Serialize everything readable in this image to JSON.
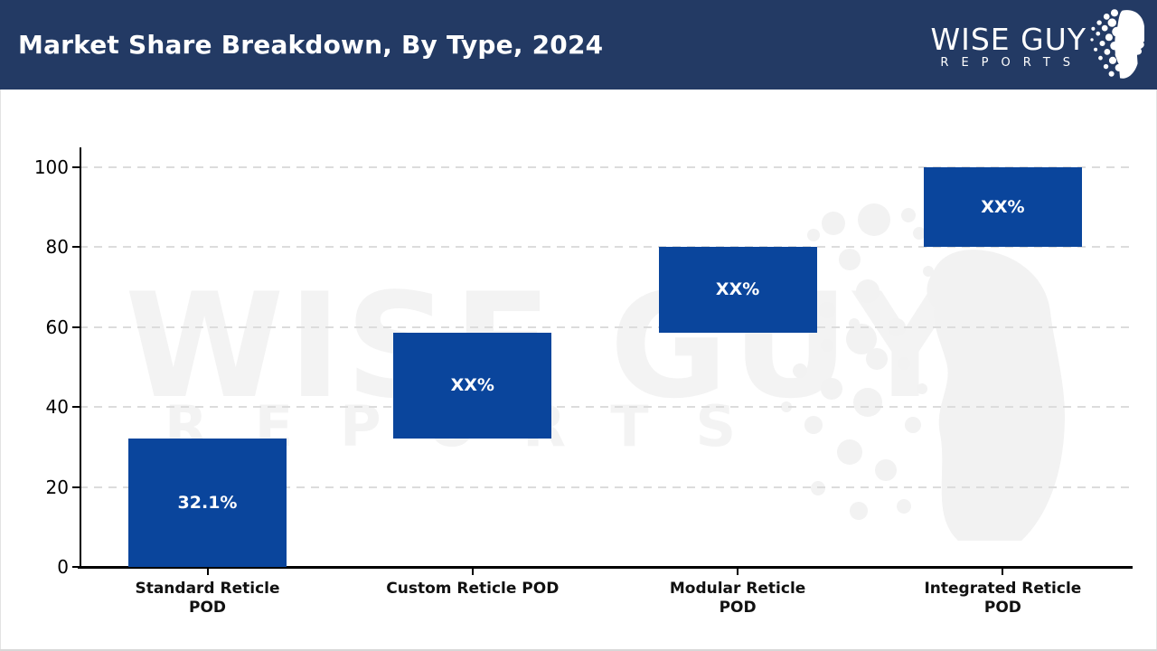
{
  "page": {
    "background": "#ffffff"
  },
  "header": {
    "bg_color": "#233a64",
    "title": "Market Share Breakdown, By Type, 2024",
    "logo": {
      "wordmark": "WISE GUY",
      "subtitle": "REPORTS"
    }
  },
  "watermark": {
    "wordmark": "WISE GUY",
    "subtitle": "REPORTS"
  },
  "chart_data": {
    "type": "bar",
    "subtype": "waterfall",
    "title": "Market Share Breakdown, By Type, 2024",
    "categories": [
      "Standard Reticle POD",
      "Custom Reticle POD",
      "Modular Reticle POD",
      "Integrated Reticle POD"
    ],
    "category_lines": [
      [
        "Standard Reticle",
        "POD"
      ],
      [
        "Custom Reticle POD"
      ],
      [
        "Modular Reticle",
        "POD"
      ],
      [
        "Integrated Reticle",
        "POD"
      ]
    ],
    "segments": [
      {
        "category": "Standard Reticle POD",
        "start": 0,
        "end": 32.1,
        "label": "32.1%"
      },
      {
        "category": "Custom Reticle POD",
        "start": 32.1,
        "end": 58.7,
        "label": "XX%"
      },
      {
        "category": "Modular Reticle POD",
        "start": 58.7,
        "end": 80.1,
        "label": "XX%"
      },
      {
        "category": "Integrated Reticle POD",
        "start": 80.1,
        "end": 100,
        "label": "XX%"
      }
    ],
    "yticks": [
      0,
      20,
      40,
      60,
      80,
      100
    ],
    "ylim": [
      0,
      105
    ],
    "xlabel": "",
    "ylabel": "",
    "grid": "horizontal-dashed",
    "legend": "none",
    "bar_color": "#0a459c",
    "bar_label_color": "#ffffff",
    "axis_color": "#000000",
    "gridline_color": "#dcdcdc",
    "tick_label_color": "#000000"
  }
}
